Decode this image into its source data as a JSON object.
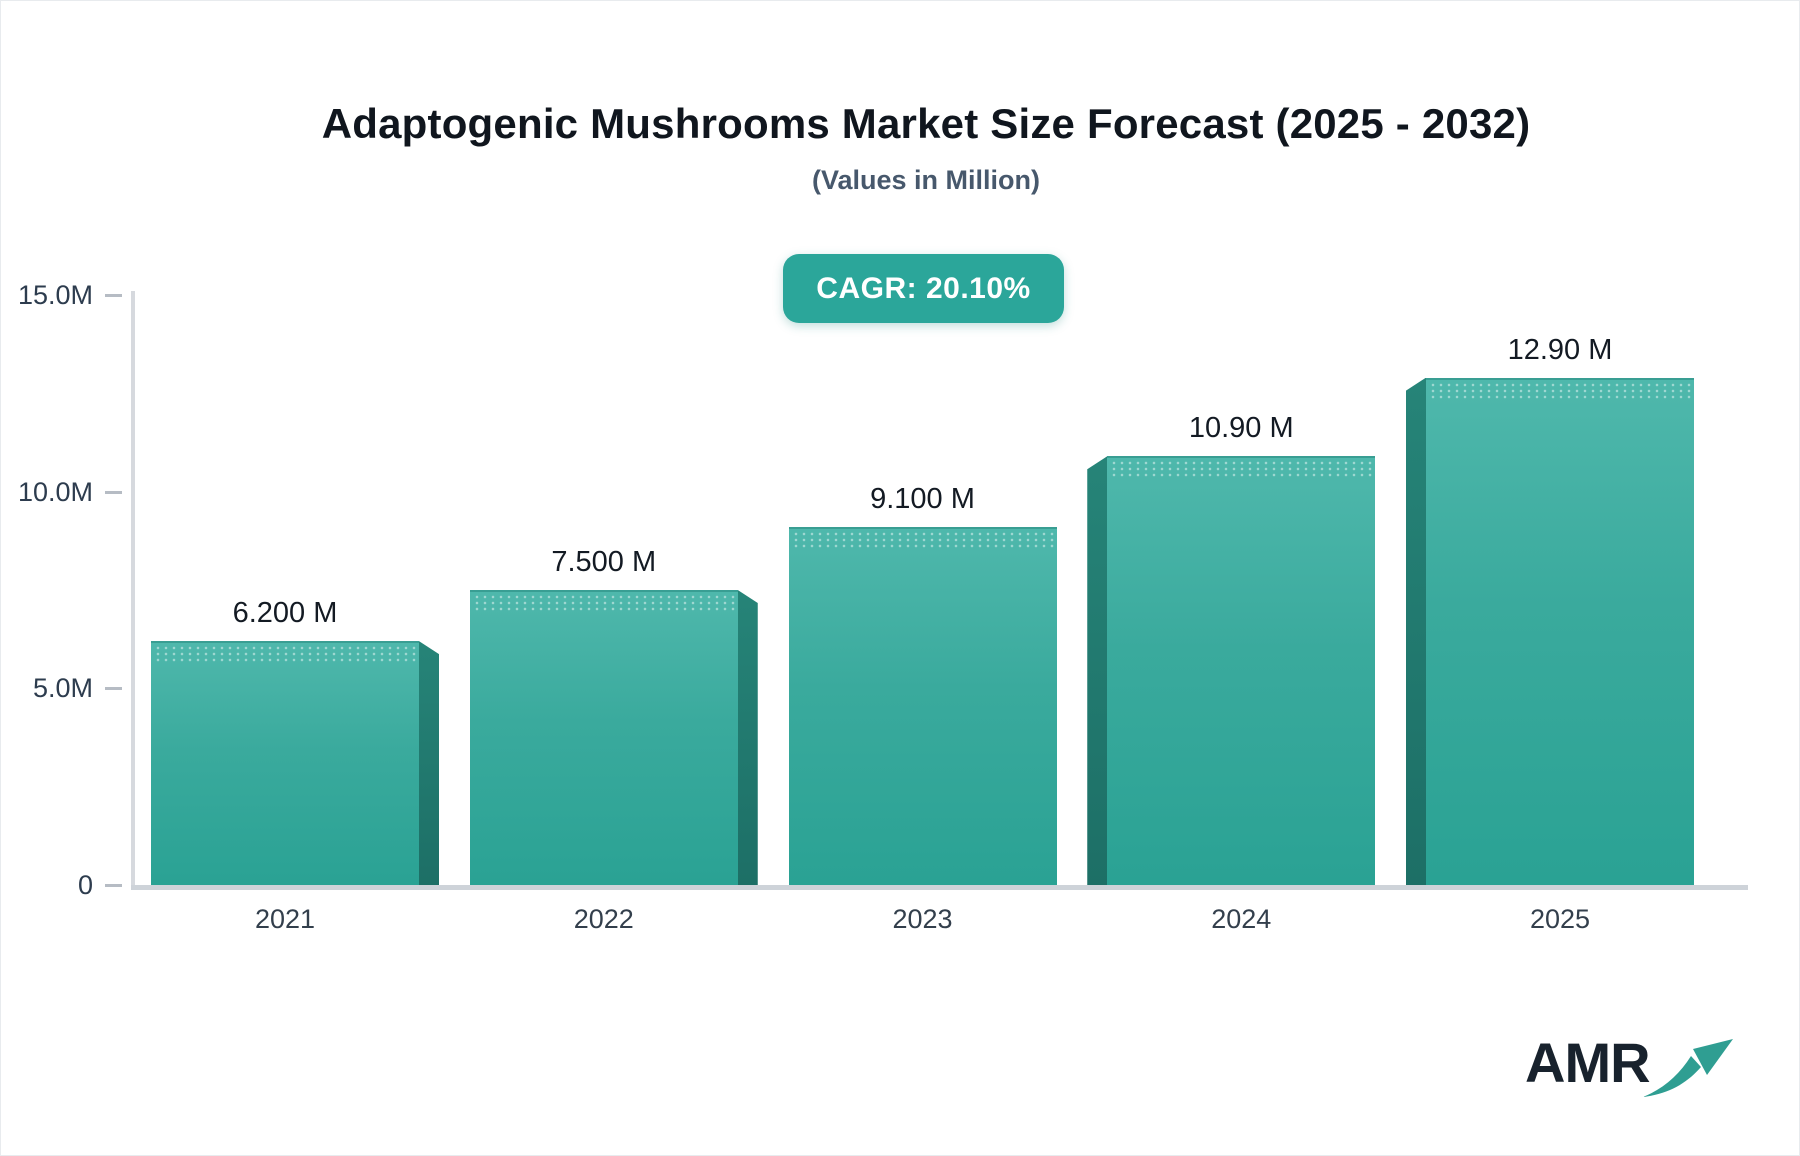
{
  "header": {
    "title": "Adaptogenic Mushrooms Market Size Forecast (2025 - 2032)",
    "subtitle": "(Values in Million)"
  },
  "badge": {
    "label": "CAGR: 20.10%"
  },
  "chart_data": {
    "type": "bar",
    "title": "Adaptogenic Mushrooms Market Size Forecast (2025 - 2032)",
    "subtitle": "(Values in Million)",
    "unit": "Million",
    "cagr": "20.10%",
    "categories": [
      "2021",
      "2022",
      "2023",
      "2024",
      "2025"
    ],
    "values": [
      6.2,
      7.5,
      9.1,
      10.9,
      12.9
    ],
    "bar_labels": [
      "6.200 M",
      "7.500 M",
      "9.100 M",
      "10.90 M",
      "12.90 M"
    ],
    "xlabel": "",
    "ylabel": "",
    "ylim": [
      0,
      15
    ],
    "y_ticks": [
      {
        "value": 0,
        "label": "0"
      },
      {
        "value": 5,
        "label": "5.0M"
      },
      {
        "value": 10,
        "label": "10.0M"
      },
      {
        "value": 15,
        "label": "15.0M"
      }
    ],
    "grid": false,
    "legend": "none",
    "bar_style": "3d",
    "bar_sides": [
      "right",
      "right",
      "none",
      "left",
      "left"
    ]
  },
  "colors": {
    "accent_teal": "#2ba69a",
    "bar_top": "#4fb8ac",
    "bar_mid": "#3aaa9d",
    "bar_bottom": "#2aa294",
    "bar_side_top": "#268478",
    "bar_side_bottom": "#1d6f66",
    "axis_line": "#ced3d9",
    "tick_dash": "#b6bcc4",
    "tick_text": "#2d3c4e",
    "category_text": "#333f4c",
    "value_text": "#131a23",
    "title_text": "#10161e",
    "subtitle_text": "#47586c",
    "badge_text": "#ffffff",
    "logo_navy": "#18222d",
    "logo_arrow": "#2f9e92"
  },
  "logo": {
    "text": "AMR"
  }
}
